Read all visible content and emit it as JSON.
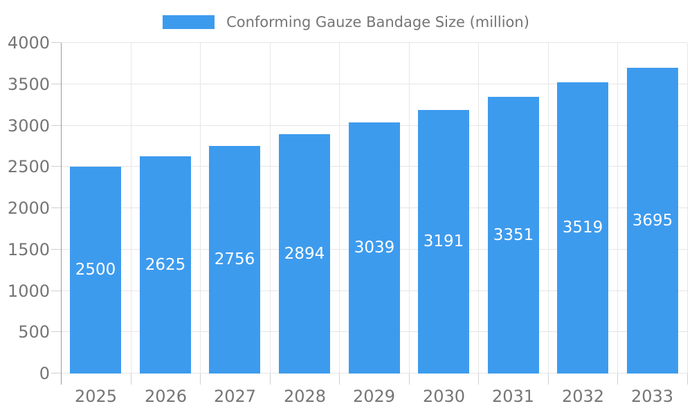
{
  "colors": {
    "bar": "#3D9BEE",
    "grid": "#E6E6E6",
    "axis_line": "#999999",
    "tick": "#CFCFCF",
    "text": "#757575",
    "value_label": "#FFFFFF",
    "background": "#FFFFFF"
  },
  "chart_data": {
    "type": "bar",
    "title": "Conforming Gauze Bandage Size (million)",
    "legend_entries": [
      "Conforming Gauze Bandage Size (million)"
    ],
    "legend_position": "top",
    "categories": [
      "2025",
      "2026",
      "2027",
      "2028",
      "2029",
      "2030",
      "2031",
      "2032",
      "2033"
    ],
    "values": [
      2500,
      2625,
      2756,
      2894,
      3039,
      3191,
      3351,
      3519,
      3695
    ],
    "value_labels": [
      "2500",
      "2625",
      "2756",
      "2894",
      "3039",
      "3191",
      "3351",
      "3519",
      "3695"
    ],
    "xlabel": "",
    "ylabel": "",
    "ylim": [
      0,
      4000
    ],
    "ytick_step": 500,
    "ytick_labels": [
      "0",
      "500",
      "1000",
      "1500",
      "2000",
      "2500",
      "3000",
      "3500",
      "4000"
    ],
    "grid": true,
    "value_label_position": "inside-center"
  }
}
